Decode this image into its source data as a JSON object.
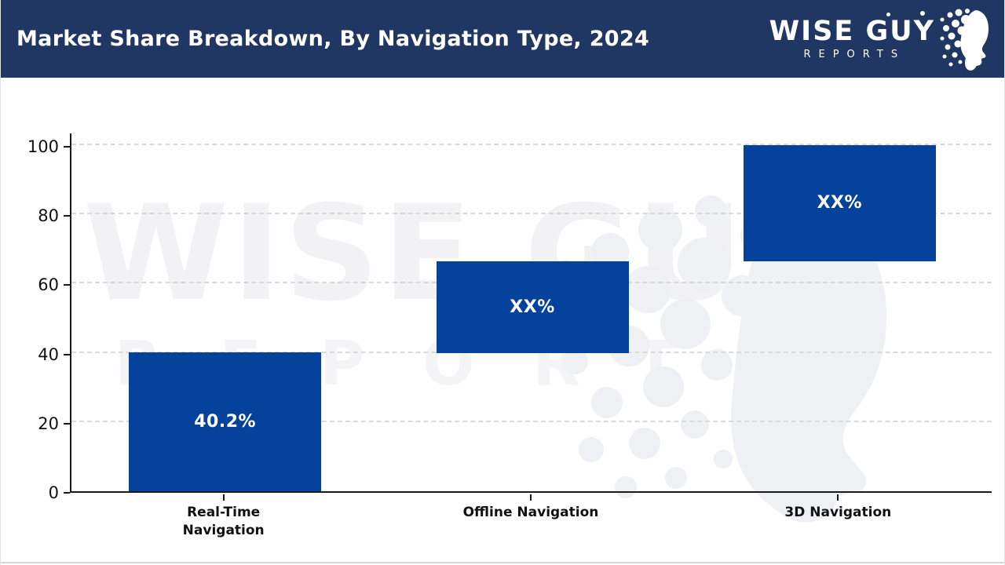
{
  "header": {
    "title": "Market Share Breakdown, By Navigation Type, 2024",
    "logo": {
      "wordmark": "WISE GUY",
      "subtitle": "REPORTS"
    }
  },
  "watermark": {
    "line1": "WISE GUY",
    "line2": "REPORTS"
  },
  "colors": {
    "header_bg": "#213763",
    "bar_blue": "#04429B",
    "bar_label": "#ffffff",
    "axis": "#1a1a1a",
    "gridline": "#d9d9d9",
    "watermark": "#f2f2f5"
  },
  "chart_data": {
    "type": "bar",
    "subtype": "floating-breakdown-bars",
    "title": "Market Share Breakdown, By Navigation Type, 2024",
    "categories": [
      "Real-Time\nNavigation",
      "Offline Navigation",
      "3D Navigation"
    ],
    "series": [
      {
        "name": "Market Share (%)",
        "segments": [
          {
            "category": "Real-Time Navigation",
            "from": 0,
            "to": 40.2,
            "label": "40.2%"
          },
          {
            "category": "Offline Navigation",
            "from": 40,
            "to": 66.5,
            "label": "XX%"
          },
          {
            "category": "3D Navigation",
            "from": 66.5,
            "to": 100,
            "label": "XX%"
          }
        ]
      }
    ],
    "ylim": [
      0,
      100
    ],
    "yticks": [
      0,
      20,
      40,
      60,
      80,
      100
    ],
    "xlabel": "",
    "ylabel": "",
    "grid": "horizontal-dashed",
    "legend": "none",
    "bar_color": "#04429B",
    "bar_label_color": "#ffffff"
  }
}
